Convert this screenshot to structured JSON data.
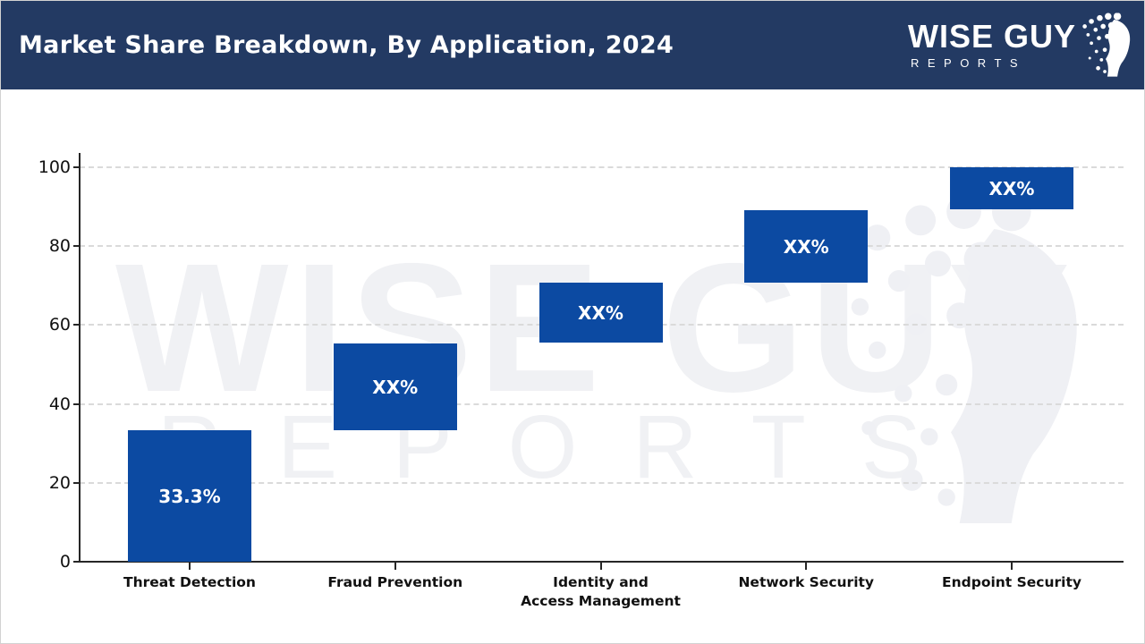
{
  "header": {
    "title": "Market Share Breakdown, By Application, 2024",
    "bg_color": "#233A63",
    "logo": {
      "line1": "WISE GUY",
      "line2": "REPORTS"
    }
  },
  "watermark": {
    "line1": "WISE GUY",
    "line2": "REPORTS"
  },
  "chart_data": {
    "type": "bar",
    "subtype": "floating-waterfall",
    "title": "Market Share Breakdown, By Application, 2024",
    "categories": [
      "Threat Detection",
      "Fraud Prevention",
      "Identity and\nAccess Management",
      "Network Security",
      "Endpoint Security"
    ],
    "series": [
      {
        "name": "Market Share",
        "ranges": [
          [
            0,
            33.3
          ],
          [
            33.3,
            55.3
          ],
          [
            55.5,
            70.7
          ],
          [
            70.7,
            89.1
          ],
          [
            89.3,
            100
          ]
        ]
      }
    ],
    "bar_labels": [
      "33.3%",
      "XX%",
      "XX%",
      "XX%",
      "XX%"
    ],
    "yticks": [
      0,
      20,
      40,
      60,
      80,
      100
    ],
    "ylim": [
      0,
      100
    ],
    "xlabel": "",
    "ylabel": "",
    "grid": "horizontal-dashed",
    "legend": "none",
    "colors": {
      "bar": "#0C4AA2",
      "grid": "#dadada",
      "axis": "#262626",
      "bar_label": "#ffffff"
    }
  }
}
